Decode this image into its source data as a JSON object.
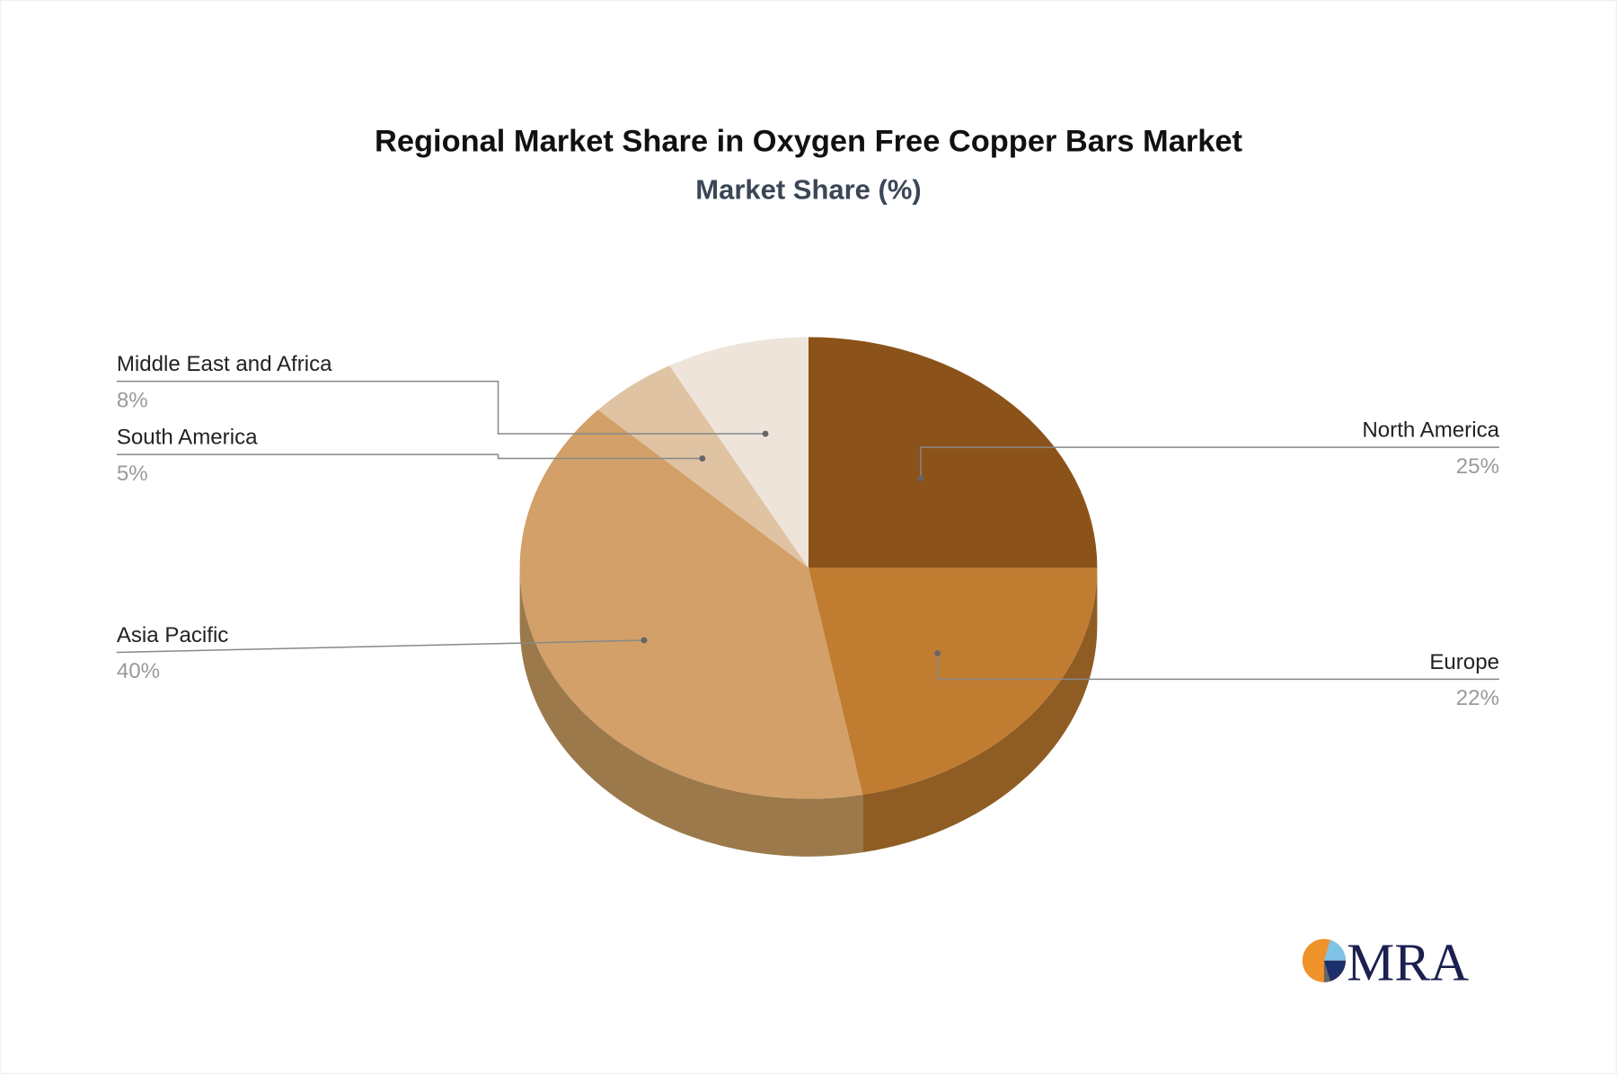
{
  "chart_data": {
    "type": "pie",
    "title": "Regional Market Share in Oxygen Free Copper Bars Market",
    "subtitle": "Market Share (%)",
    "style": "3d",
    "slices": [
      {
        "label": "North America",
        "value": 25,
        "display": "25%",
        "color": "#8B531A",
        "side": "#8A5A22"
      },
      {
        "label": "Europe",
        "value": 22,
        "display": "22%",
        "color": "#C07C30",
        "side": "#8F5D24"
      },
      {
        "label": "Asia Pacific",
        "value": 40,
        "display": "40%",
        "color": "#D2A068",
        "side": "#9C794B"
      },
      {
        "label": "South America",
        "value": 5,
        "display": "5%",
        "color": "#DFC3A2",
        "side": "#A08A70"
      },
      {
        "label": "Middle East and Africa",
        "value": 8,
        "display": "8%",
        "color": "#EEE4DA",
        "side": "#B0A59A"
      }
    ]
  },
  "logo": {
    "text": "MRA"
  }
}
